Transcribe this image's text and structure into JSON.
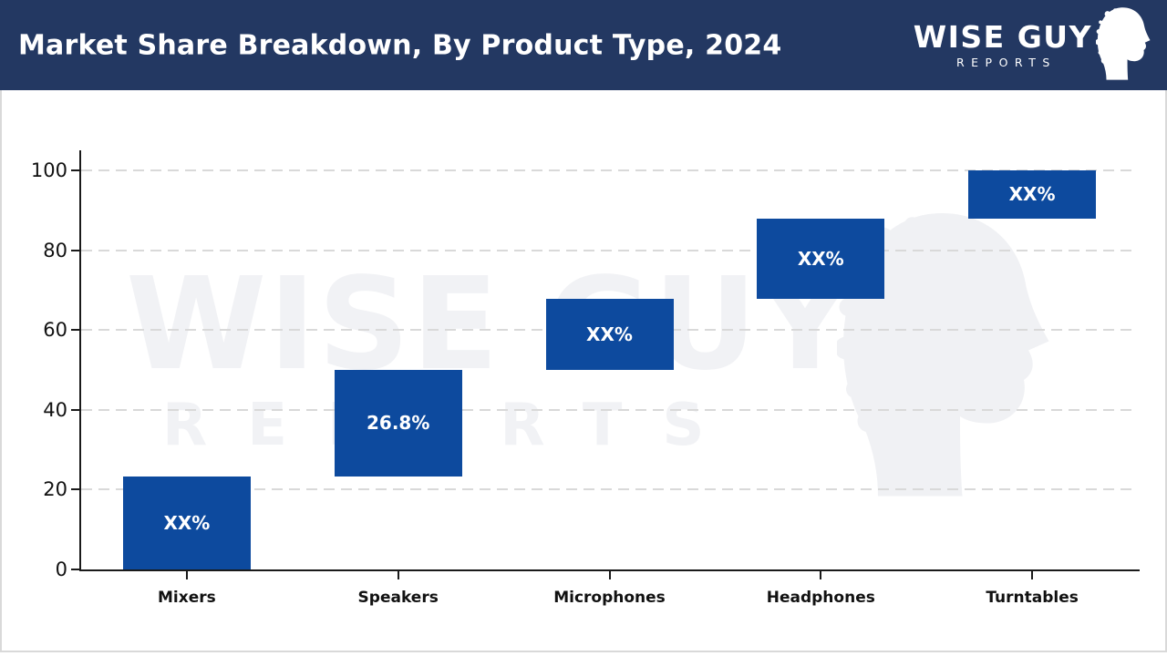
{
  "header": {
    "title": "Market Share Breakdown, By Product Type, 2024",
    "bg_color": "#233862",
    "logo": {
      "line1": "WISE GUY",
      "line2": "REPORTS"
    }
  },
  "watermark": {
    "line1": "WISE GUY",
    "line2": "REPORTS"
  },
  "chart_data": {
    "type": "waterfall",
    "title": "Market Share Breakdown, By Product Type, 2024",
    "categories": [
      "Mixers",
      "Speakers",
      "Microphones",
      "Headphones",
      "Turntables"
    ],
    "segments": [
      {
        "category": "Mixers",
        "start": 0,
        "end": 23.3,
        "value": 23.3,
        "label": "XX%"
      },
      {
        "category": "Speakers",
        "start": 23.3,
        "end": 50.1,
        "value": 26.8,
        "label": "26.8%"
      },
      {
        "category": "Microphones",
        "start": 50.1,
        "end": 67.9,
        "value": 17.8,
        "label": "XX%"
      },
      {
        "category": "Headphones",
        "start": 67.9,
        "end": 87.9,
        "value": 20.0,
        "label": "XX%"
      },
      {
        "category": "Turntables",
        "start": 87.9,
        "end": 100,
        "value": 12.1,
        "label": "XX%"
      }
    ],
    "y_ticks": [
      0,
      20,
      40,
      60,
      80,
      100
    ],
    "ylim": [
      0,
      105
    ],
    "xlabel": "",
    "ylabel": "",
    "grid": "horizontal-dashed",
    "legend": "none",
    "bar_color": "#0d4a9e",
    "bar_label_color": "#ffffff",
    "axis_color": "#1a1a1a",
    "gridline_color": "#d9d9d9",
    "watermark_color": "#f1f2f5"
  }
}
